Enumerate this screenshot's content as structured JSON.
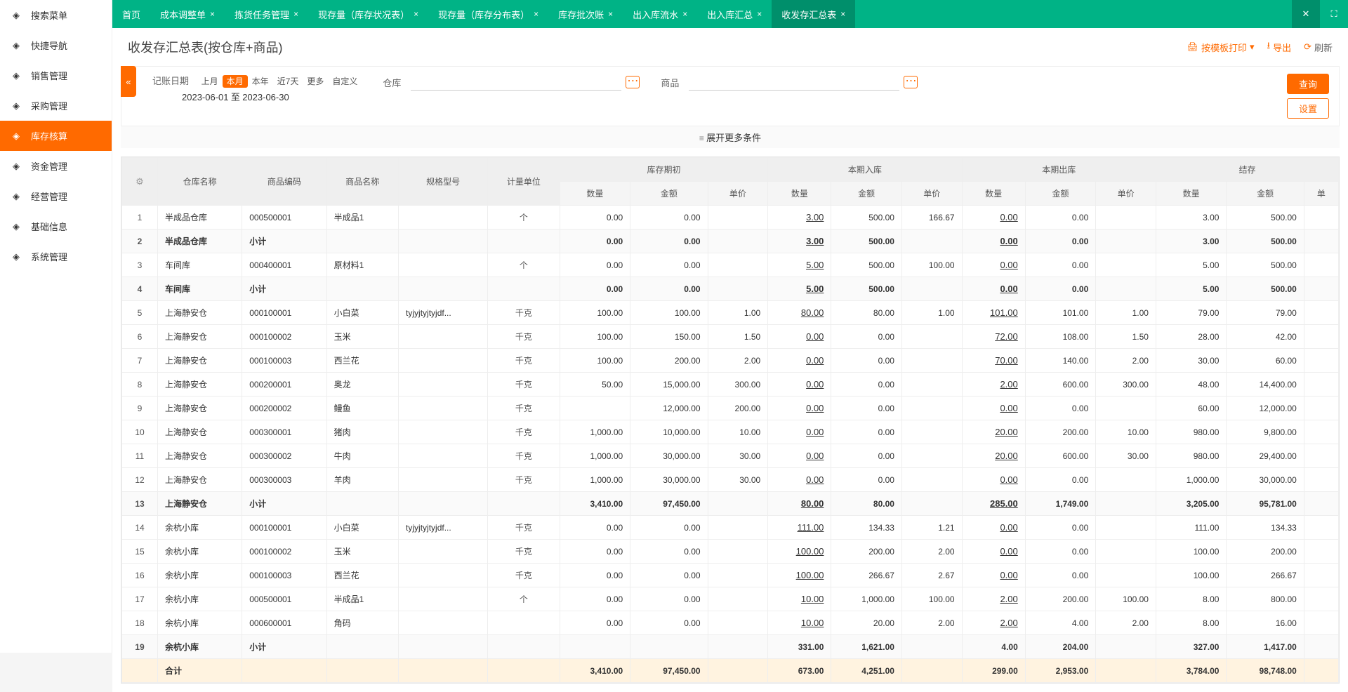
{
  "sidebar": [
    {
      "label": "搜索菜单",
      "icon": "search"
    },
    {
      "label": "快捷导航",
      "icon": "home"
    },
    {
      "label": "销售管理",
      "icon": "tag"
    },
    {
      "label": "采购管理",
      "icon": "cart"
    },
    {
      "label": "库存核算",
      "icon": "box",
      "active": true
    },
    {
      "label": "资金管理",
      "icon": "money"
    },
    {
      "label": "经营管理",
      "icon": "clip"
    },
    {
      "label": "基础信息",
      "icon": "grid"
    },
    {
      "label": "系统管理",
      "icon": "gear"
    }
  ],
  "tabs": [
    {
      "label": "首页",
      "closable": false
    },
    {
      "label": "成本调整单",
      "closable": true
    },
    {
      "label": "拣货任务管理",
      "closable": true
    },
    {
      "label": "现存量（库存状况表）",
      "closable": true
    },
    {
      "label": "现存量（库存分布表）",
      "closable": true
    },
    {
      "label": "库存批次账",
      "closable": true
    },
    {
      "label": "出入库流水",
      "closable": true
    },
    {
      "label": "出入库汇总",
      "closable": true
    },
    {
      "label": "收发存汇总表",
      "closable": true,
      "active": true
    }
  ],
  "page": {
    "title": "收发存汇总表(按仓库+商品)",
    "actions": {
      "print": "按模板打印",
      "export": "导出",
      "refresh": "刷新"
    }
  },
  "filter": {
    "date_label": "记账日期",
    "ranges": [
      "上月",
      "本月",
      "本年",
      "近7天",
      "更多",
      "自定义"
    ],
    "range_active": "本月",
    "date_from": "2023-06-01",
    "date_to": "2023-06-30",
    "date_sep": "至",
    "warehouse_label": "仓库",
    "warehouse_value": "",
    "product_label": "商品",
    "product_value": "",
    "btn_query": "查询",
    "btn_setting": "设置",
    "expand": "展开更多条件"
  },
  "columns": {
    "idx": "",
    "warehouse": "仓库名称",
    "code": "商品编码",
    "name": "商品名称",
    "spec": "规格型号",
    "unit": "计量单位",
    "g1": "库存期初",
    "g2": "本期入库",
    "g3": "本期出库",
    "g4": "结存",
    "qty": "数量",
    "amt": "金额",
    "price": "单价",
    "price_short": "单"
  },
  "rows": [
    {
      "i": "1",
      "wh": "半成品仓库",
      "code": "000500001",
      "name": "半成品1",
      "spec": "",
      "unit": "个",
      "q1": "0.00",
      "a1": "0.00",
      "p1": "",
      "q2": "3.00",
      "a2": "500.00",
      "p2": "166.67",
      "q3": "0.00",
      "a3": "0.00",
      "p3": "",
      "q4": "3.00",
      "a4": "500.00",
      "l2": true,
      "l3": true
    },
    {
      "i": "2",
      "wh": "半成品仓库",
      "code": "小计",
      "sub": true,
      "q1": "0.00",
      "a1": "0.00",
      "p1": "",
      "q2": "3.00",
      "a2": "500.00",
      "p2": "",
      "q3": "0.00",
      "a3": "0.00",
      "p3": "",
      "q4": "3.00",
      "a4": "500.00",
      "l2": true,
      "l3": true
    },
    {
      "i": "3",
      "wh": "车间库",
      "code": "000400001",
      "name": "原材料1",
      "spec": "",
      "unit": "个",
      "q1": "0.00",
      "a1": "0.00",
      "p1": "",
      "q2": "5.00",
      "a2": "500.00",
      "p2": "100.00",
      "q3": "0.00",
      "a3": "0.00",
      "p3": "",
      "q4": "5.00",
      "a4": "500.00",
      "l2": true,
      "l3": true
    },
    {
      "i": "4",
      "wh": "车间库",
      "code": "小计",
      "sub": true,
      "q1": "0.00",
      "a1": "0.00",
      "p1": "",
      "q2": "5.00",
      "a2": "500.00",
      "p2": "",
      "q3": "0.00",
      "a3": "0.00",
      "p3": "",
      "q4": "5.00",
      "a4": "500.00",
      "l2": true,
      "l3": true
    },
    {
      "i": "5",
      "wh": "上海静安仓",
      "code": "000100001",
      "name": "小白菜",
      "spec": "tyjyjtyjtyjdf...",
      "unit": "千克",
      "q1": "100.00",
      "a1": "100.00",
      "p1": "1.00",
      "q2": "80.00",
      "a2": "80.00",
      "p2": "1.00",
      "q3": "101.00",
      "a3": "101.00",
      "p3": "1.00",
      "q4": "79.00",
      "a4": "79.00",
      "l2": true,
      "l3": true
    },
    {
      "i": "6",
      "wh": "上海静安仓",
      "code": "000100002",
      "name": "玉米",
      "spec": "",
      "unit": "千克",
      "q1": "100.00",
      "a1": "150.00",
      "p1": "1.50",
      "q2": "0.00",
      "a2": "0.00",
      "p2": "",
      "q3": "72.00",
      "a3": "108.00",
      "p3": "1.50",
      "q4": "28.00",
      "a4": "42.00",
      "l2": true,
      "l3": true
    },
    {
      "i": "7",
      "wh": "上海静安仓",
      "code": "000100003",
      "name": "西兰花",
      "spec": "",
      "unit": "千克",
      "q1": "100.00",
      "a1": "200.00",
      "p1": "2.00",
      "q2": "0.00",
      "a2": "0.00",
      "p2": "",
      "q3": "70.00",
      "a3": "140.00",
      "p3": "2.00",
      "q4": "30.00",
      "a4": "60.00",
      "l2": true,
      "l3": true
    },
    {
      "i": "8",
      "wh": "上海静安仓",
      "code": "000200001",
      "name": "奥龙",
      "spec": "",
      "unit": "千克",
      "q1": "50.00",
      "a1": "15,000.00",
      "p1": "300.00",
      "q2": "0.00",
      "a2": "0.00",
      "p2": "",
      "q3": "2.00",
      "a3": "600.00",
      "p3": "300.00",
      "q4": "48.00",
      "a4": "14,400.00",
      "l2": true,
      "l3": true
    },
    {
      "i": "9",
      "wh": "上海静安仓",
      "code": "000200002",
      "name": "鳗鱼",
      "spec": "",
      "unit": "千克",
      "q1": "",
      "a1": "12,000.00",
      "p1": "200.00",
      "q2": "0.00",
      "a2": "0.00",
      "p2": "",
      "q3": "0.00",
      "a3": "0.00",
      "p3": "",
      "q4": "60.00",
      "a4": "12,000.00",
      "l2": true,
      "l3": true
    },
    {
      "i": "10",
      "wh": "上海静安仓",
      "code": "000300001",
      "name": "猪肉",
      "spec": "",
      "unit": "千克",
      "q1": "1,000.00",
      "a1": "10,000.00",
      "p1": "10.00",
      "q2": "0.00",
      "a2": "0.00",
      "p2": "",
      "q3": "20.00",
      "a3": "200.00",
      "p3": "10.00",
      "q4": "980.00",
      "a4": "9,800.00",
      "l2": true,
      "l3": true
    },
    {
      "i": "11",
      "wh": "上海静安仓",
      "code": "000300002",
      "name": "牛肉",
      "spec": "",
      "unit": "千克",
      "q1": "1,000.00",
      "a1": "30,000.00",
      "p1": "30.00",
      "q2": "0.00",
      "a2": "0.00",
      "p2": "",
      "q3": "20.00",
      "a3": "600.00",
      "p3": "30.00",
      "q4": "980.00",
      "a4": "29,400.00",
      "l2": true,
      "l3": true
    },
    {
      "i": "12",
      "wh": "上海静安仓",
      "code": "000300003",
      "name": "羊肉",
      "spec": "",
      "unit": "千克",
      "q1": "1,000.00",
      "a1": "30,000.00",
      "p1": "30.00",
      "q2": "0.00",
      "a2": "0.00",
      "p2": "",
      "q3": "0.00",
      "a3": "0.00",
      "p3": "",
      "q4": "1,000.00",
      "a4": "30,000.00",
      "l2": true,
      "l3": true
    },
    {
      "i": "13",
      "wh": "上海静安仓",
      "code": "小计",
      "sub": true,
      "q1": "3,410.00",
      "a1": "97,450.00",
      "p1": "",
      "q2": "80.00",
      "a2": "80.00",
      "p2": "",
      "q3": "285.00",
      "a3": "1,749.00",
      "p3": "",
      "q4": "3,205.00",
      "a4": "95,781.00",
      "l2": true,
      "l3": true
    },
    {
      "i": "14",
      "wh": "余杭小库",
      "code": "000100001",
      "name": "小白菜",
      "spec": "tyjyjtyjtyjdf...",
      "unit": "千克",
      "q1": "0.00",
      "a1": "0.00",
      "p1": "",
      "q2": "111.00",
      "a2": "134.33",
      "p2": "1.21",
      "q3": "0.00",
      "a3": "0.00",
      "p3": "",
      "q4": "111.00",
      "a4": "134.33",
      "l2": true,
      "l3": true
    },
    {
      "i": "15",
      "wh": "余杭小库",
      "code": "000100002",
      "name": "玉米",
      "spec": "",
      "unit": "千克",
      "q1": "0.00",
      "a1": "0.00",
      "p1": "",
      "q2": "100.00",
      "a2": "200.00",
      "p2": "2.00",
      "q3": "0.00",
      "a3": "0.00",
      "p3": "",
      "q4": "100.00",
      "a4": "200.00",
      "l2": true,
      "l3": true
    },
    {
      "i": "16",
      "wh": "余杭小库",
      "code": "000100003",
      "name": "西兰花",
      "spec": "",
      "unit": "千克",
      "q1": "0.00",
      "a1": "0.00",
      "p1": "",
      "q2": "100.00",
      "a2": "266.67",
      "p2": "2.67",
      "q3": "0.00",
      "a3": "0.00",
      "p3": "",
      "q4": "100.00",
      "a4": "266.67",
      "l2": true,
      "l3": true
    },
    {
      "i": "17",
      "wh": "余杭小库",
      "code": "000500001",
      "name": "半成品1",
      "spec": "",
      "unit": "个",
      "q1": "0.00",
      "a1": "0.00",
      "p1": "",
      "q2": "10.00",
      "a2": "1,000.00",
      "p2": "100.00",
      "q3": "2.00",
      "a3": "200.00",
      "p3": "100.00",
      "q4": "8.00",
      "a4": "800.00",
      "l2": true,
      "l3": true
    },
    {
      "i": "18",
      "wh": "余杭小库",
      "code": "000600001",
      "name": "角码",
      "spec": "",
      "unit": "",
      "q1": "0.00",
      "a1": "0.00",
      "p1": "",
      "q2": "10.00",
      "a2": "20.00",
      "p2": "2.00",
      "q3": "2.00",
      "a3": "4.00",
      "p3": "2.00",
      "q4": "8.00",
      "a4": "16.00",
      "l2": true,
      "l3": true
    },
    {
      "i": "19",
      "wh": "余杭小库",
      "code": "小计",
      "sub": true,
      "q1": "",
      "a1": "",
      "p1": "",
      "q2": "331.00",
      "a2": "1,621.00",
      "p2": "",
      "q3": "4.00",
      "a3": "204.00",
      "p3": "",
      "q4": "327.00",
      "a4": "1,417.00",
      "l2": false,
      "l3": false
    }
  ],
  "total": {
    "label": "合计",
    "q1": "3,410.00",
    "a1": "97,450.00",
    "q2": "673.00",
    "a2": "4,251.00",
    "q3": "299.00",
    "a3": "2,953.00",
    "q4": "3,784.00",
    "a4": "98,748.00"
  }
}
